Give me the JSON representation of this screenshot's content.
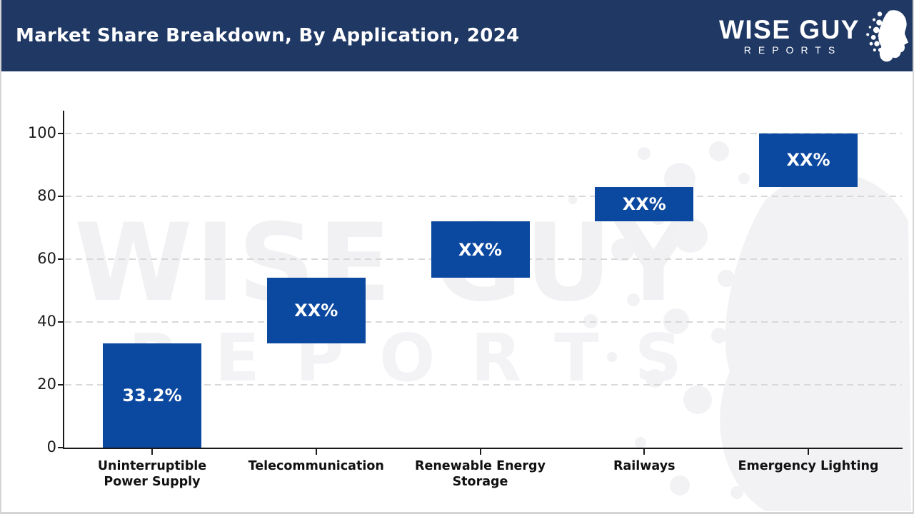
{
  "header": {
    "title": "Market Share Breakdown, By Application, 2024",
    "logo": {
      "wordmark": "WISE GUY",
      "subtext": "REPORTS"
    }
  },
  "watermark": {
    "wordmark": "WISE GUY",
    "subtext": "REPORTS"
  },
  "chart_data": {
    "type": "bar",
    "subtype": "floating-segment-waterfall",
    "title": "Market Share Breakdown, By Application, 2024",
    "categories": [
      "Uninterruptible Power Supply",
      "Telecommunication",
      "Renewable Energy Storage",
      "Railways",
      "Emergency Lighting"
    ],
    "category_label_lines": [
      [
        "Uninterruptible",
        "Power Supply"
      ],
      [
        "Telecommunication"
      ],
      [
        "Renewable Energy",
        "Storage"
      ],
      [
        "Railways"
      ],
      [
        "Emergency Lighting"
      ]
    ],
    "segments": [
      {
        "category": "Uninterruptible Power Supply",
        "start": 0,
        "end": 33.2,
        "label": "33.2%"
      },
      {
        "category": "Telecommunication",
        "start": 33.2,
        "end": 54,
        "label": "XX%"
      },
      {
        "category": "Renewable Energy Storage",
        "start": 54,
        "end": 72,
        "label": "XX%"
      },
      {
        "category": "Railways",
        "start": 72,
        "end": 83,
        "label": "XX%"
      },
      {
        "category": "Emergency Lighting",
        "start": 83,
        "end": 100,
        "label": "XX%"
      }
    ],
    "ylim": [
      0,
      107
    ],
    "yticks": [
      0,
      20,
      40,
      60,
      80,
      100
    ],
    "grid": "horizontal-dashed",
    "legend": "none",
    "bar_color": "#0b489f",
    "bar_label_color": "#ffffff"
  },
  "colors": {
    "header_bg": "#1f3864",
    "bar": "#0b489f",
    "grid": "#d8d8d8",
    "axis": "#1a1a1a",
    "watermark": "#f1f1f4",
    "page_border": "#d5d5d5"
  }
}
